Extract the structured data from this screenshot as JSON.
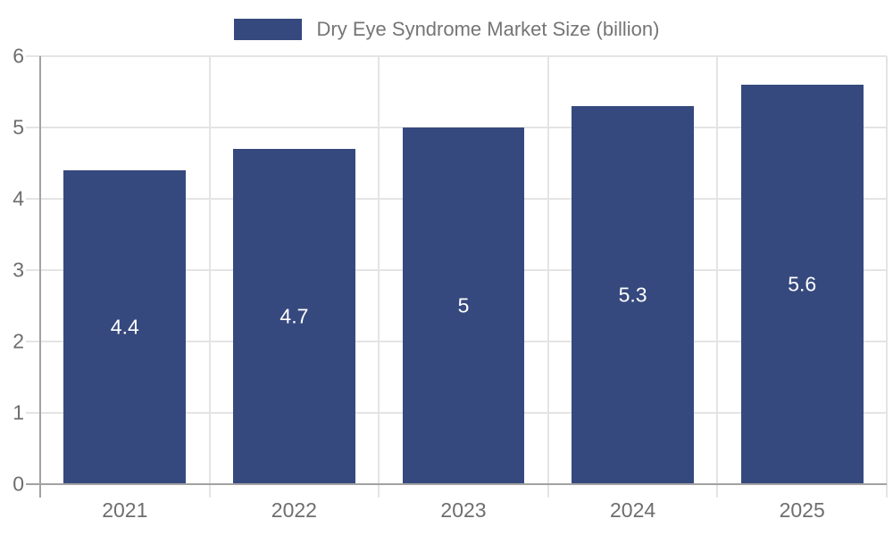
{
  "legend": {
    "label": "Dry Eye Syndrome Market Size (billion)"
  },
  "chart_data": {
    "type": "bar",
    "title": "Dry Eye Syndrome Market Size (billion)",
    "categories": [
      "2021",
      "2022",
      "2023",
      "2024",
      "2025"
    ],
    "values": [
      4.4,
      4.7,
      5,
      5.3,
      5.6
    ],
    "bar_labels": [
      "4.4",
      "4.7",
      "5",
      "5.3",
      "5.6"
    ],
    "xlabel": "",
    "ylabel": "",
    "ylim": [
      0,
      6
    ],
    "yticks": [
      0,
      1,
      2,
      3,
      4,
      5,
      6
    ],
    "grid": true,
    "legend_position": "top-center",
    "bar_label_position": "center-inside",
    "colors": {
      "bar": "#36497e",
      "bar_label": "#ffffff",
      "grid_line": "#e4e4e4",
      "axis_line": "#a2a2a2",
      "tick_label": "#6e6e6e",
      "legend_text": "#757575",
      "background": "#ffffff"
    }
  }
}
